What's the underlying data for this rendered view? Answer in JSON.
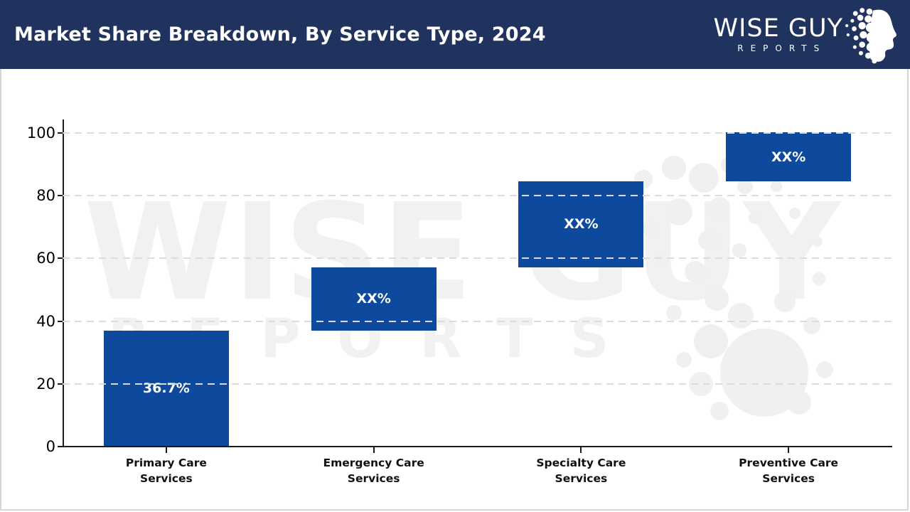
{
  "header": {
    "title": "Market Share Breakdown, By Service Type, 2024",
    "logo": {
      "name": "Wise Guy Reports",
      "line1": "WISE GUY",
      "line2": "REPORTS"
    }
  },
  "watermark": {
    "line1": "WISE GUY",
    "line2": "REPORTS"
  },
  "chart_data": {
    "type": "bar",
    "variant": "waterfall",
    "title": "Market Share Breakdown, By Service Type, 2024",
    "categories": [
      "Primary Care Services",
      "Emergency Care Services",
      "Specialty Care Services",
      "Preventive Care Services"
    ],
    "segments": [
      {
        "category": "Primary Care Services",
        "start": 0,
        "end": 36.7,
        "label": "36.7%"
      },
      {
        "category": "Emergency Care Services",
        "start": 36.7,
        "end": 57.0,
        "label": "XX%"
      },
      {
        "category": "Specialty Care Services",
        "start": 57.0,
        "end": 84.3,
        "label": "XX%"
      },
      {
        "category": "Preventive Care Services",
        "start": 84.3,
        "end": 100,
        "label": "XX%"
      }
    ],
    "yticks": [
      0,
      20,
      40,
      60,
      80,
      100
    ],
    "ylim": [
      0,
      104
    ],
    "xlabel": "",
    "ylabel": "",
    "grid": "dashed-horizontal-over-bars",
    "legend": "none"
  },
  "colors": {
    "header_bg": "#20335f",
    "bar": "#0d4a9e",
    "bar_label": "#ffffff",
    "grid": "#dcdcdc",
    "axis": "#1a1a1a",
    "watermark": "#f1f1f4",
    "page_border": "#d6d6d6"
  }
}
